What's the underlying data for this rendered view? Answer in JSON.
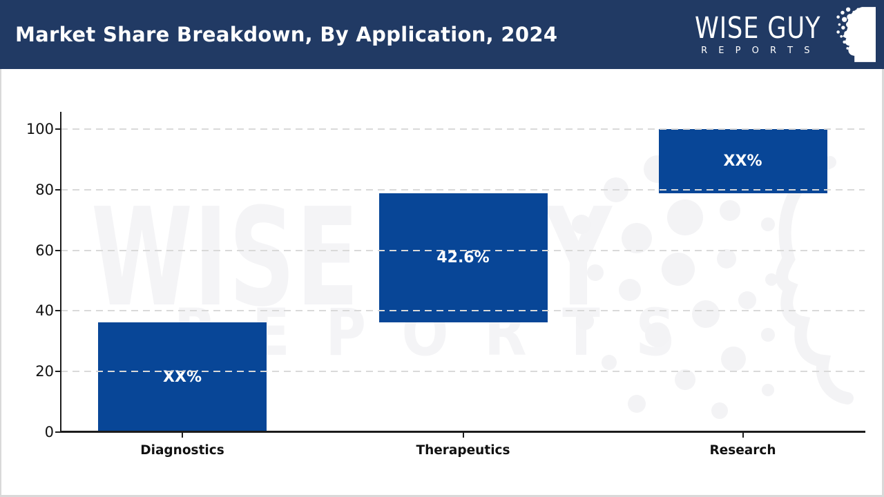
{
  "header": {
    "title": "Market Share Breakdown, By Application, 2024",
    "logo": {
      "wordmark": "WISE GUY",
      "subtext": "R E P O R T S",
      "face_icon": "dotted-face-profile"
    }
  },
  "watermark": {
    "wordmark": "WISE GUY",
    "subtext": "R E P O R T S",
    "face_icon": "dotted-face-profile"
  },
  "chart_data": {
    "type": "bar",
    "subtype": "floating-segment stacked breakdown (waterfall-style)",
    "title": "Market Share Breakdown, By Application, 2024",
    "categories": [
      "Diagnostics",
      "Therapeutics",
      "Research"
    ],
    "segments": [
      {
        "category": "Diagnostics",
        "base": 0,
        "top": 36.3,
        "value": 36.3,
        "label": "XX%"
      },
      {
        "category": "Therapeutics",
        "base": 36.3,
        "top": 78.9,
        "value": 42.6,
        "label": "42.6%"
      },
      {
        "category": "Research",
        "base": 78.9,
        "top": 100,
        "value": 21.1,
        "label": "XX%"
      }
    ],
    "yticks": [
      0,
      20,
      40,
      60,
      80,
      100
    ],
    "ylim": [
      0,
      106
    ],
    "xlabel": "",
    "ylabel": "",
    "grid": "horizontal-dashed",
    "legend": "none",
    "bar_color": "#084697",
    "label_color": "#ffffff"
  },
  "colors": {
    "header_bg": "#213a64",
    "axis": "#1c1c1c",
    "gridline": "#d9d9d9",
    "watermark": "#f3f3f5",
    "border": "#d9d9d9",
    "background": "#ffffff"
  }
}
